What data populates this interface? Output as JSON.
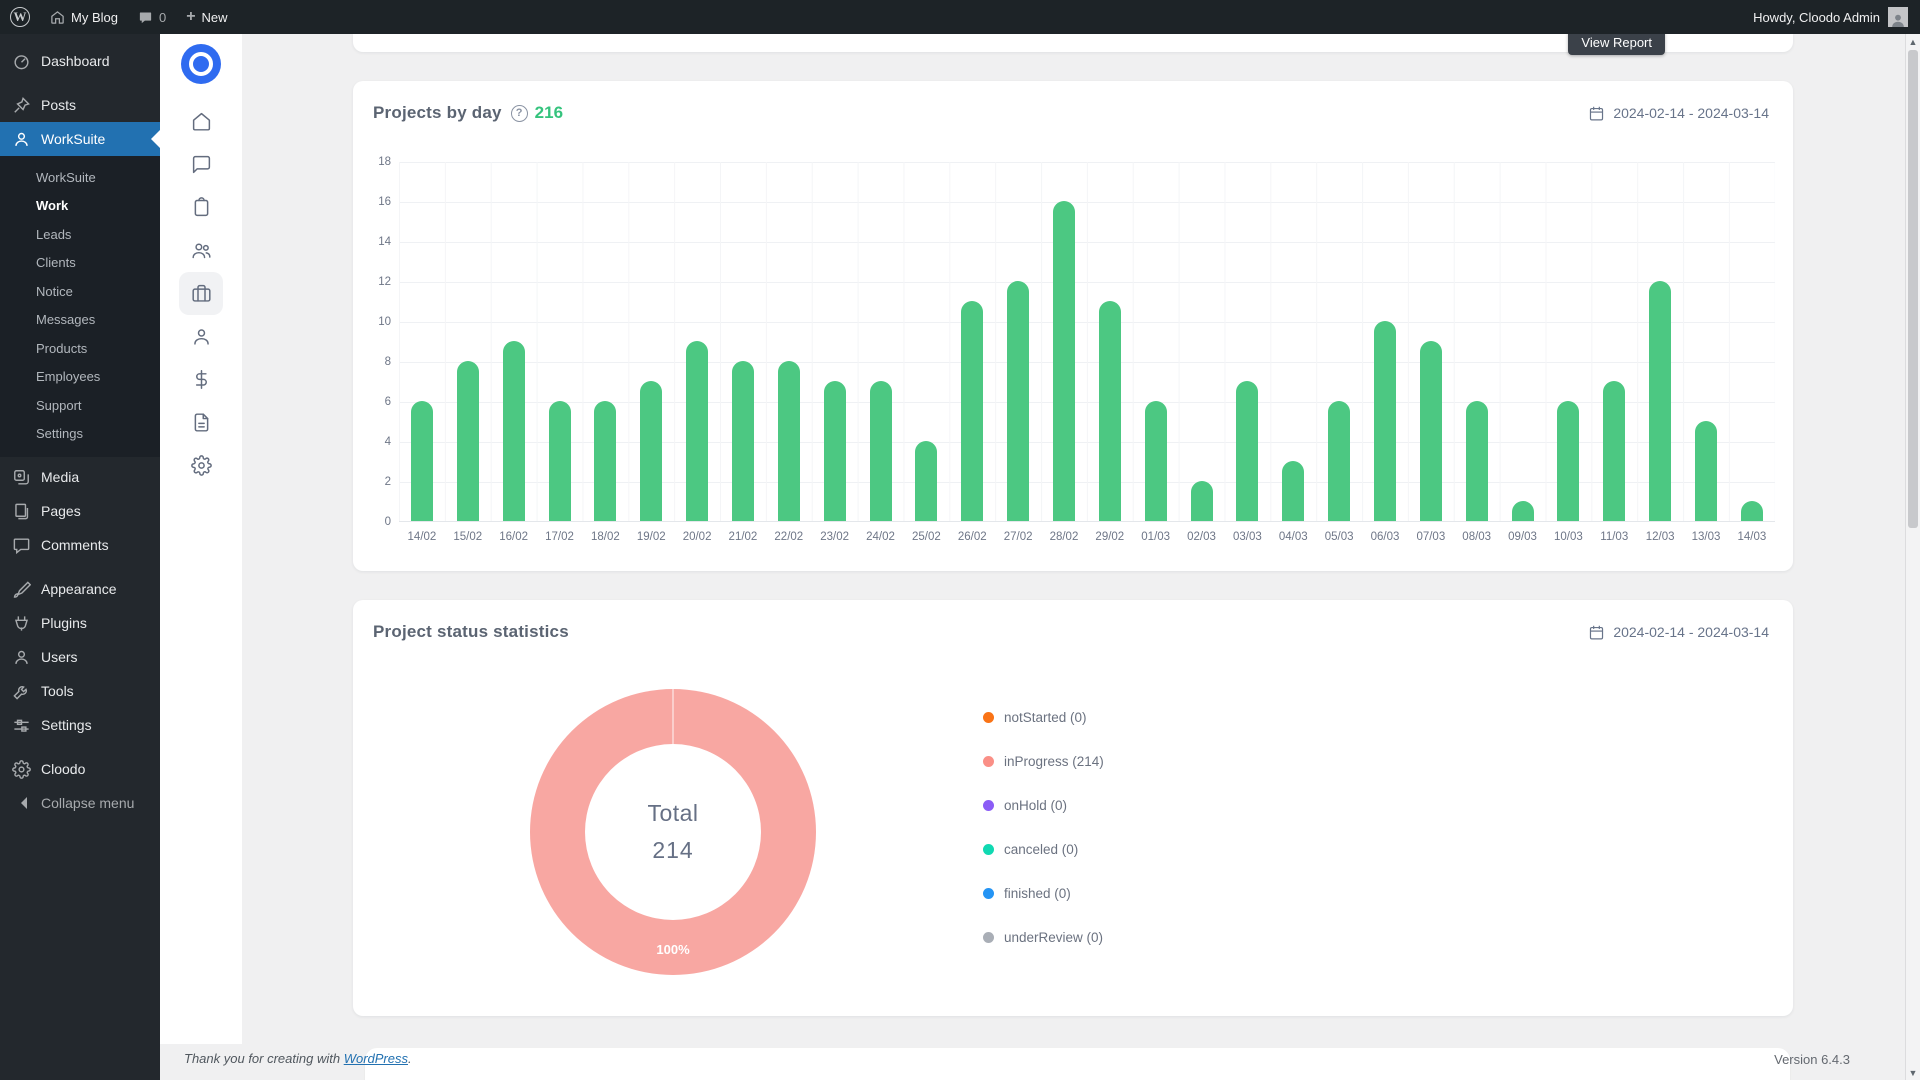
{
  "admin_bar": {
    "site_name": "My Blog",
    "comments_count": "0",
    "new_label": "New",
    "howdy": "Howdy, Cloodo Admin"
  },
  "sidebar": {
    "dashboard": "Dashboard",
    "posts": "Posts",
    "worksuite": "WorkSuite",
    "submenu": [
      "WorkSuite",
      "Work",
      "Leads",
      "Clients",
      "Notice",
      "Messages",
      "Products",
      "Employees",
      "Support",
      "Settings"
    ],
    "media": "Media",
    "pages": "Pages",
    "comments": "Comments",
    "appearance": "Appearance",
    "plugins": "Plugins",
    "users": "Users",
    "tools": "Tools",
    "settings": "Settings",
    "cloodo": "Cloodo",
    "collapse": "Collapse menu"
  },
  "icon_rail": {
    "icons": [
      "home",
      "messages",
      "tasks",
      "team",
      "projects",
      "profile",
      "finance",
      "documents",
      "settings"
    ],
    "active_icon": "projects"
  },
  "top_card": {
    "view_report_label": "View Report"
  },
  "projects_card": {
    "title": "Projects by day",
    "count": "216",
    "date_range": "2024-02-14 - 2024-03-14"
  },
  "status_card": {
    "title": "Project status statistics",
    "date_range": "2024-02-14 - 2024-03-14"
  },
  "footer": {
    "thanks_prefix": "Thank you for creating with ",
    "wordpress_link": "WordPress",
    "suffix": ".",
    "version": "Version 6.4.3"
  },
  "chart_data": [
    {
      "type": "bar",
      "title": "Projects by day",
      "categories": [
        "14/02",
        "15/02",
        "16/02",
        "17/02",
        "18/02",
        "19/02",
        "20/02",
        "21/02",
        "22/02",
        "23/02",
        "24/02",
        "25/02",
        "26/02",
        "27/02",
        "28/02",
        "29/02",
        "01/03",
        "02/03",
        "03/03",
        "04/03",
        "05/03",
        "06/03",
        "07/03",
        "08/03",
        "09/03",
        "10/03",
        "11/03",
        "12/03",
        "13/03",
        "14/03"
      ],
      "values": [
        6,
        8,
        9,
        6,
        6,
        7,
        9,
        8,
        8,
        7,
        7,
        4,
        11,
        12,
        16,
        11,
        6,
        2,
        7,
        3,
        6,
        10,
        9,
        6,
        1,
        6,
        7,
        12,
        5,
        1
      ],
      "total": 216,
      "xlabel": "",
      "ylabel": "",
      "ylim": [
        0,
        18
      ],
      "yticks": [
        18,
        16,
        14,
        12,
        10,
        8,
        6,
        4,
        2,
        0
      ],
      "grid": true,
      "bar_color": "#4cc882",
      "legend_position": "none"
    },
    {
      "type": "pie",
      "title": "Project status statistics",
      "center_label": "Total",
      "center_value": "214",
      "slice_label": "100%",
      "ring_color": "#f8a7a2",
      "legend_position": "right",
      "series": [
        {
          "name": "notStarted",
          "value": 0,
          "color": "#f97316"
        },
        {
          "name": "inProgress",
          "value": 214,
          "color": "#fa8f86"
        },
        {
          "name": "onHold",
          "value": 0,
          "color": "#8b5cf6"
        },
        {
          "name": "canceled",
          "value": 0,
          "color": "#10d9b2"
        },
        {
          "name": "finished",
          "value": 0,
          "color": "#2494f4"
        },
        {
          "name": "underReview",
          "value": 0,
          "color": "#a9aeb6"
        }
      ]
    }
  ]
}
